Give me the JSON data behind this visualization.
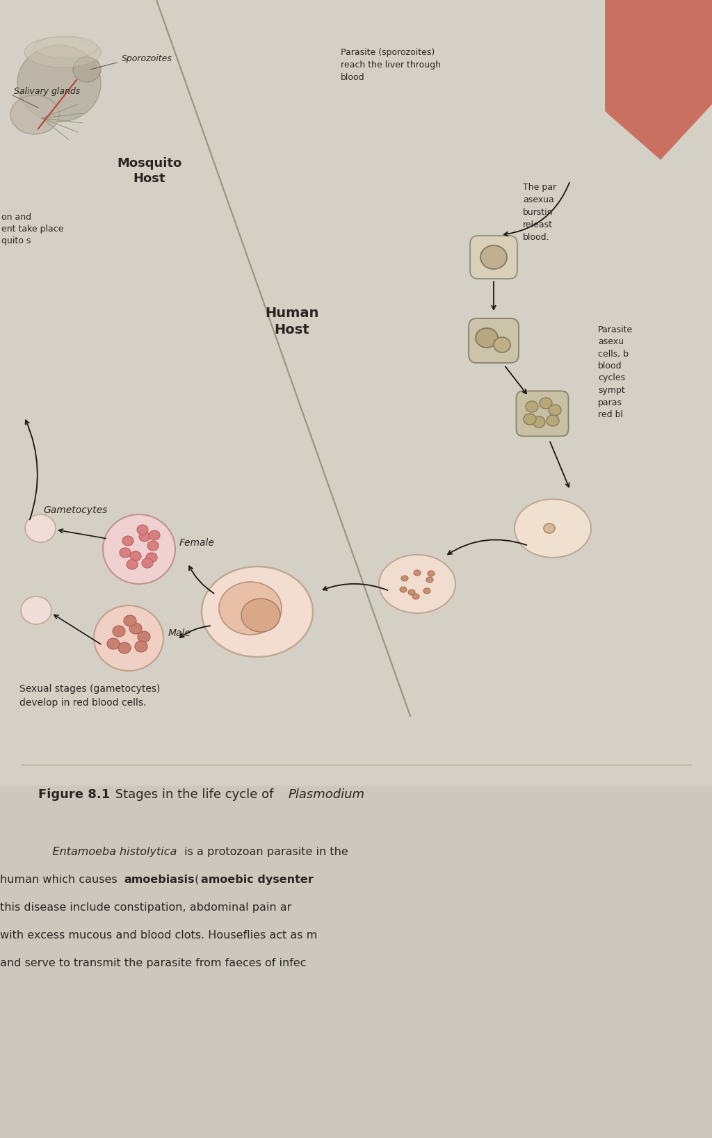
{
  "bg_color": "#cdc8be",
  "text_color": "#2a2520",
  "arrow_color": "#1a1510",
  "diag_line_color": "#9a9080",
  "pink_top_right_color": "#c96655",
  "sporozoites_label": "Sporozoites",
  "salivary_glands_label": "Salivary glands",
  "parasite_text": "Parasite (sporozoites)\nreach the liver through\nblood",
  "mosquito_host_label": "Mosquito\nHost",
  "human_host_label": "Human\nHost",
  "on_and_text": "on and\nent take place\nquito s",
  "the_par_text": "The par\nasexua\nburstin\nreleast\nblood.",
  "parasite_asexual_text": "Parasite\nasexu\ncells, b\nblood\ncycles\nsympt\nparas\nred bl",
  "gametocytes_label": "Gametocytes",
  "female_label": "Female",
  "male_label": "Male",
  "sexual_stages_text": "Sexual stages (gametocytes)\ndevelop in red blood cells.",
  "figure_bold": "Figure 8.1",
  "figure_rest": " Stages in the life cycle of ",
  "figure_italic": "Plasmodium",
  "body_line1_italic": "    Entamoeba histolytica",
  "body_line1_rest": " is a protozoan parasite in the",
  "body_line2a": "human which causes ",
  "body_line2b": "amoebiasis",
  "body_line2c": " (",
  "body_line2d": "amoebic dysenter",
  "body_line3": "this disease include constipation, abdominal pain ar",
  "body_line4": "with excess mucous and blood clots. Houseflies act as m",
  "body_line5": "and serve to transmit the parasite from faeces of infec",
  "fig_fontsize": 13,
  "body_fontsize": 11.5,
  "label_fontsize": 10,
  "small_fontsize": 9
}
